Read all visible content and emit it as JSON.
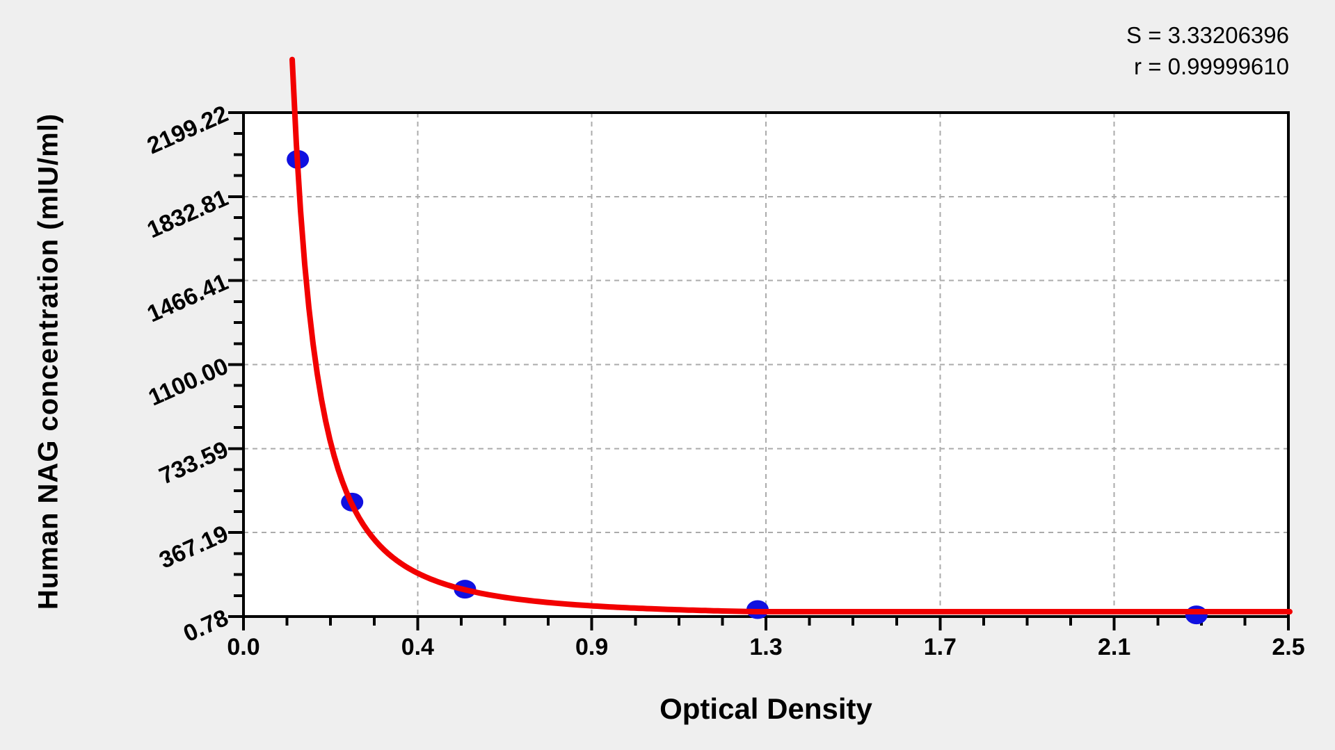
{
  "page": {
    "background": "#EFEFEF",
    "plot_background": "#FFFFFF",
    "frame_color": "#000000"
  },
  "stats": {
    "s_line": "S = 3.33206396",
    "r_line": "r = 0.99999610"
  },
  "chart_data": {
    "type": "scatter",
    "title": "",
    "xlabel": "Optical Density",
    "ylabel": "Human NAG concentration (mIU/ml)",
    "xlim": [
      0.0,
      2.5
    ],
    "ylim": [
      0.78,
      2199.22
    ],
    "x_tick_labels": [
      "0.0",
      "0.4",
      "0.9",
      "1.3",
      "1.7",
      "2.1",
      "2.5"
    ],
    "y_tick_labels_bottom_to_top": [
      "0.78",
      "367.19",
      "733.59",
      "1100.00",
      "1466.41",
      "1832.81",
      "2199.22"
    ],
    "minor_ticks_per_interval": 3,
    "grid": {
      "style": "dashed",
      "at": "major ticks",
      "color": "#ABABAB"
    },
    "legend": "none",
    "annotations": [
      "S = 3.33206396",
      "r = 0.99999610"
    ],
    "series": [
      {
        "name": "standard data points",
        "type": "scatter",
        "marker": "filled-ellipse",
        "color": "#1010E0",
        "points": [
          {
            "od": 0.13,
            "concentration": 1995
          },
          {
            "od": 0.26,
            "concentration": 500
          },
          {
            "od": 0.53,
            "concentration": 120
          },
          {
            "od": 1.23,
            "concentration": 31
          },
          {
            "od": 2.28,
            "concentration": 8
          }
        ]
      },
      {
        "name": "fitted standard curve",
        "type": "line",
        "color": "#F20000",
        "shape": "inverse power decay, extends above top frame at left",
        "render_model": {
          "form": "y = a * x^b",
          "a": 33,
          "b": -2
        }
      }
    ]
  }
}
